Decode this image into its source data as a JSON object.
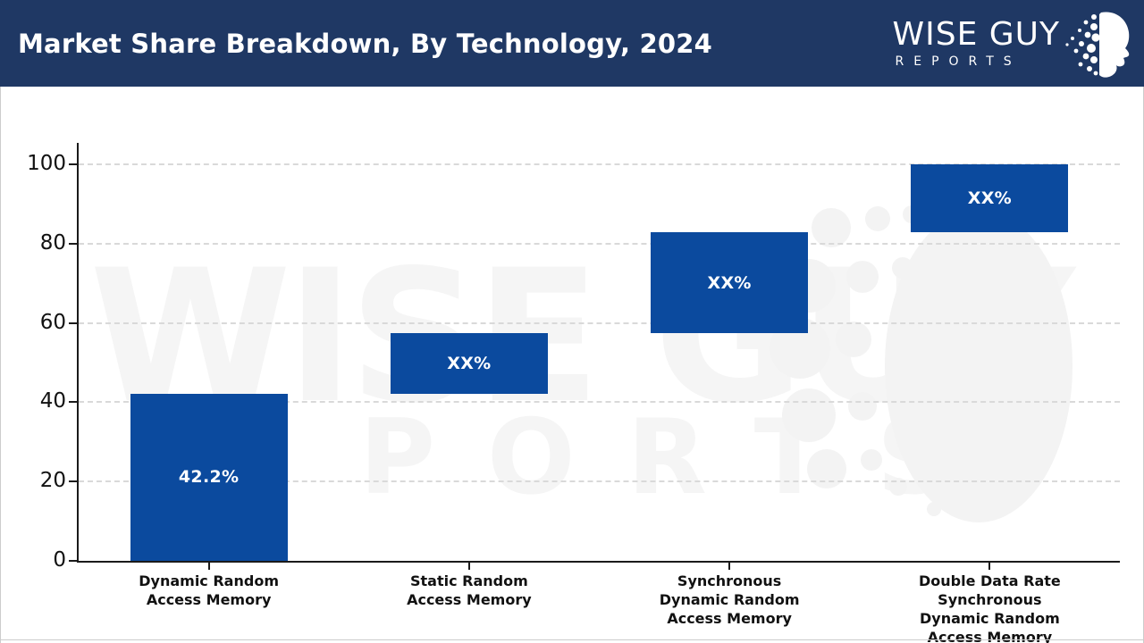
{
  "header": {
    "logo": {
      "line1": "WISE GUY",
      "line2": "REPORTS"
    }
  },
  "watermark": {
    "line1": "WISE GUY",
    "line2": "PORTS"
  },
  "chart_data": {
    "type": "bar",
    "subtype": "waterfall",
    "title": "Market Share Breakdown, By Technology, 2024",
    "categories": [
      [
        "Dynamic Random",
        "Access Memory"
      ],
      [
        "Static Random",
        "Access Memory"
      ],
      [
        "Synchronous",
        "Dynamic Random",
        "Access Memory"
      ],
      [
        "Double Data Rate",
        "Synchronous",
        "Dynamic Random",
        "Access Memory"
      ]
    ],
    "segments": [
      {
        "start": 0,
        "end": 42.2,
        "label": "42.2%"
      },
      {
        "start": 42.2,
        "end": 57.4,
        "label": "XX%"
      },
      {
        "start": 57.4,
        "end": 82.9,
        "label": "XX%"
      },
      {
        "start": 82.9,
        "end": 100,
        "label": "XX%"
      }
    ],
    "xlabel": "",
    "ylabel": "",
    "ylim": [
      0,
      105
    ],
    "yticks": [
      0,
      20,
      40,
      60,
      80,
      100
    ],
    "grid": "horizontal-dashed",
    "legend": "none",
    "bar_color": "#0b4a9e"
  },
  "colors": {
    "header_bg": "#1f3864",
    "bar": "#0b4a9e",
    "grid": "#d9d9d9",
    "axis": "#1a1a1a",
    "bar_label": "#ffffff",
    "watermark": "#f5f5f5",
    "page_border": "#cccccc"
  }
}
